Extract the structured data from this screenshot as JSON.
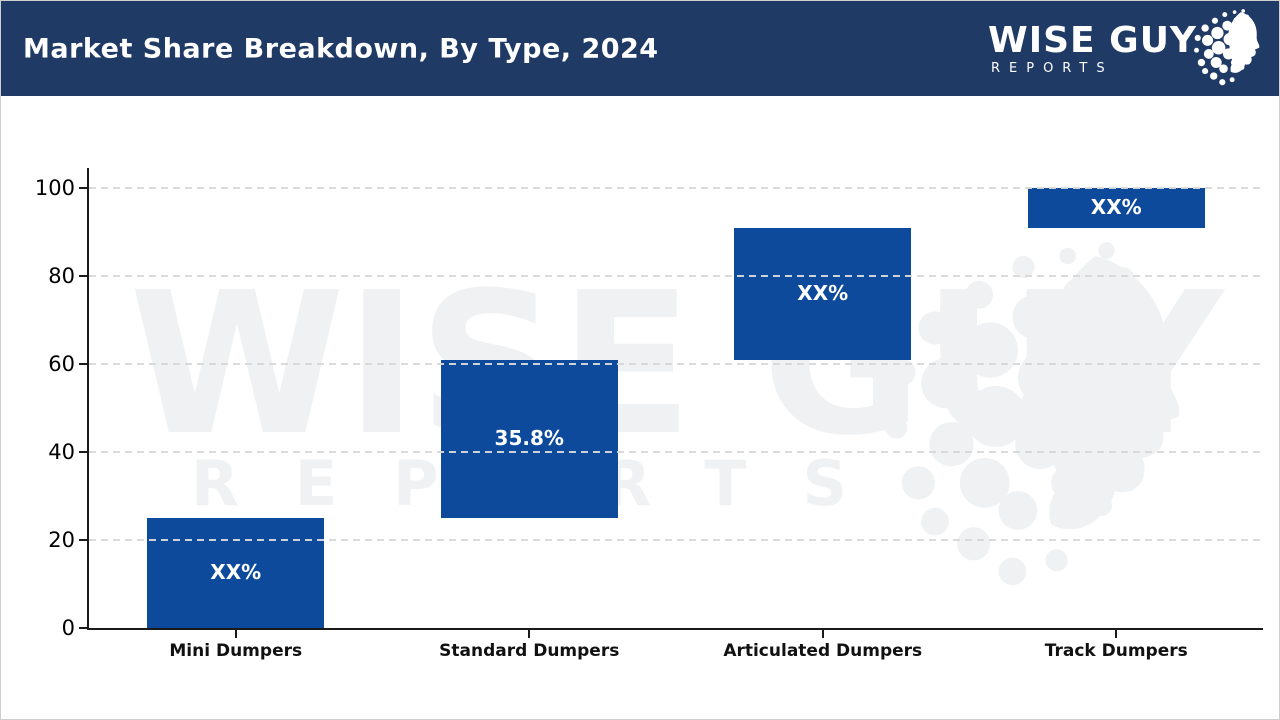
{
  "header": {
    "title": "Market Share Breakdown, By Type, 2024",
    "logo": {
      "line1": "WISE GUY",
      "line2": "REPORTS"
    }
  },
  "watermark": {
    "line1": "WISE GUY",
    "line2": "REPORTS"
  },
  "colors": {
    "header_bg": "#203a66",
    "bar": "#0d4a9c",
    "grid": "#d9d9d9",
    "axis": "#1a1a1a",
    "watermark": "#f0f1f3",
    "bar_label": "#ffffff"
  },
  "chart_data": {
    "type": "bar",
    "subtype": "floating-waterfall",
    "title": "Market Share Breakdown, By Type, 2024",
    "categories": [
      "Mini Dumpers",
      "Standard Dumpers",
      "Articulated Dumpers",
      "Track Dumpers"
    ],
    "bars": [
      {
        "category": "Mini Dumpers",
        "start": 0,
        "end": 25,
        "label": "XX%"
      },
      {
        "category": "Standard Dumpers",
        "start": 25,
        "end": 60.8,
        "label": "35.8%"
      },
      {
        "category": "Articulated Dumpers",
        "start": 60.8,
        "end": 90.8,
        "label": "XX%"
      },
      {
        "category": "Track Dumpers",
        "start": 90.8,
        "end": 100,
        "label": "XX%"
      }
    ],
    "yticks": [
      0,
      20,
      40,
      60,
      80,
      100
    ],
    "ylim": [
      0,
      105
    ],
    "xlabel": "",
    "ylabel": "",
    "grid": "horizontal-dashed",
    "legend": "none"
  }
}
